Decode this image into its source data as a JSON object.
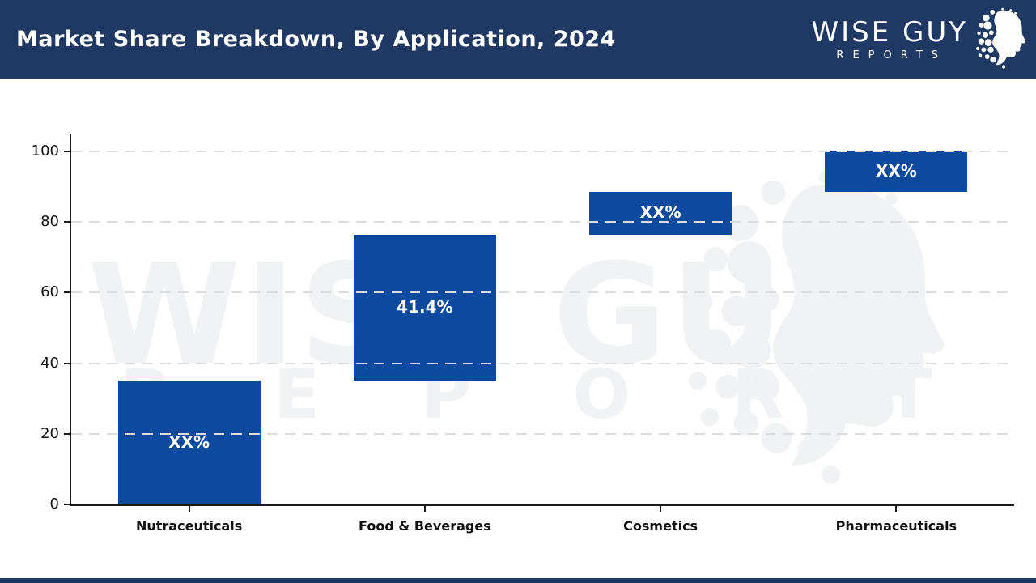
{
  "header": {
    "title": "Market Share Breakdown, By Application, 2024",
    "bg_color": "#1F3864",
    "logo": {
      "line1": "WISE GUY",
      "line2": "REPORTS"
    }
  },
  "watermark": {
    "line1": "WISE GUY",
    "line2": "R E P O R T S"
  },
  "chart_data": {
    "type": "bar",
    "subtype": "waterfall",
    "title": "Market Share Breakdown, By Application, 2024",
    "categories": [
      "Nutraceuticals",
      "Food & Beverages",
      "Cosmetics",
      "Pharmaceuticals"
    ],
    "segments": [
      {
        "category": "Nutraceuticals",
        "start": 0,
        "end": 35,
        "label": "XX%"
      },
      {
        "category": "Food & Beverages",
        "start": 35,
        "end": 76.4,
        "label": "41.4%"
      },
      {
        "category": "Cosmetics",
        "start": 76.4,
        "end": 88.6,
        "label": "XX%"
      },
      {
        "category": "Pharmaceuticals",
        "start": 88.6,
        "end": 100,
        "label": "XX%"
      }
    ],
    "yticks": [
      0,
      20,
      40,
      60,
      80,
      100
    ],
    "ylim": [
      0,
      105
    ],
    "xlabel": "",
    "ylabel": "",
    "grid": "horizontal-dashed",
    "legend": "none",
    "bar_color": "#0B4A9E",
    "bar_label_color": "#FFFFFF",
    "axis_color": "#1a1a1a",
    "gridline_color": "#dcdcdc"
  }
}
